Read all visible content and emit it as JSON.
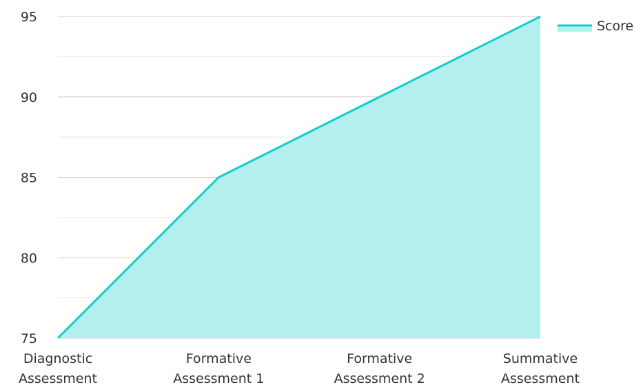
{
  "chart_data": {
    "type": "area",
    "categories": [
      [
        "Diagnostic",
        "Assessment"
      ],
      [
        "Formative",
        "Assessment 1"
      ],
      [
        "Formative",
        "Assessment 2"
      ],
      [
        "Summative",
        "Assessment"
      ]
    ],
    "series": [
      {
        "name": "Score",
        "values": [
          75,
          85,
          90,
          95
        ]
      }
    ],
    "ylim": [
      75,
      95
    ],
    "yticks": [
      75,
      80,
      85,
      90,
      95
    ],
    "grid": true,
    "legend": "top-right",
    "colors": {
      "line": "#14cccc",
      "fill": "#b2efed",
      "grid": "#cccccc",
      "minor_grid": "#e6e6e6"
    }
  }
}
